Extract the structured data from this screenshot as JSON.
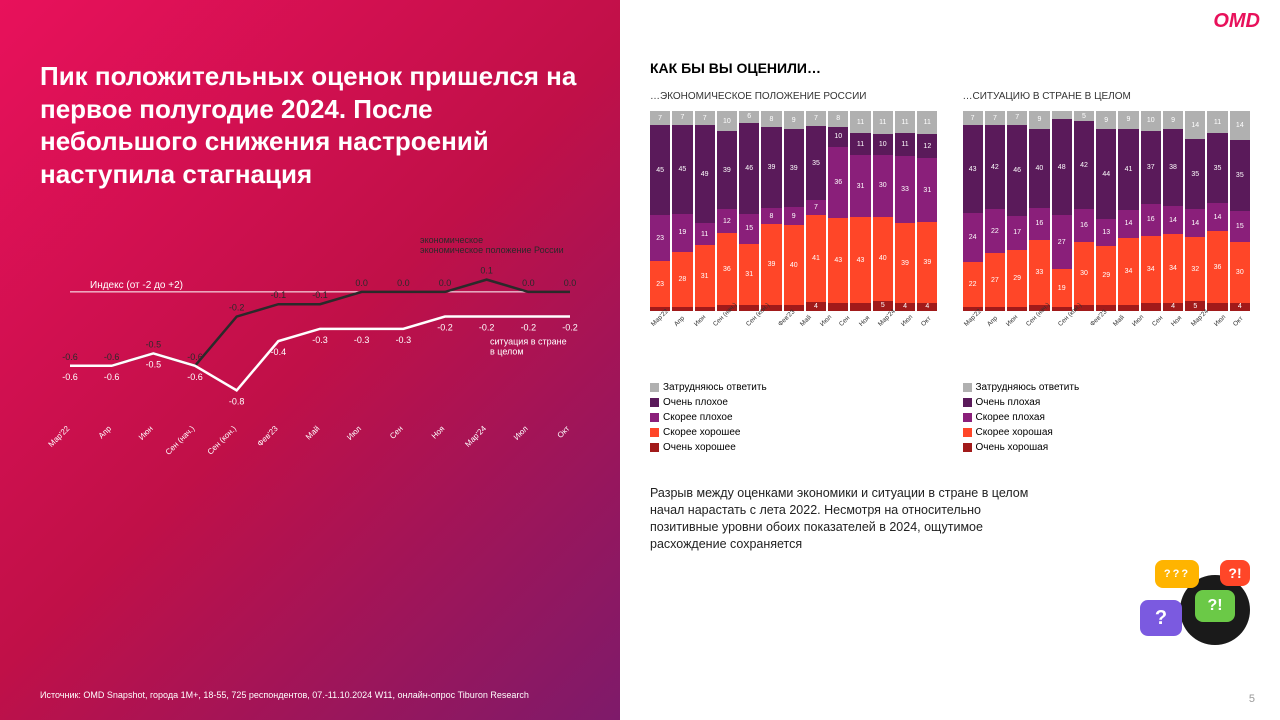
{
  "title": "Пик положительных оценок пришелся на первое полугодие 2024. После небольшого снижения настроений наступила стагнация",
  "source": "Источник: OMD Snapshot, города 1М+, 18-55, 725 респондентов, 07.-11.10.2024 W11,  онлайн-опрос Tiburon Research",
  "page_num": "5",
  "line_chart": {
    "index_label": "Индекс (от -2 до +2)",
    "series1_label": "экономическое положение России",
    "series2_label": "ситуация в стране в целом",
    "x_labels": [
      "Мар'22",
      "Апр",
      "Июн",
      "Сен (нач.)",
      "Сен (кон.)",
      "Фев'23",
      "Май",
      "Июл",
      "Сен",
      "Ноя",
      "Мар'24",
      "Июл",
      "Окт"
    ],
    "s1": [
      -0.6,
      -0.6,
      -0.5,
      -0.6,
      -0.2,
      -0.1,
      -0.1,
      0.0,
      0.0,
      0.0,
      0.1,
      0.0,
      0.0
    ],
    "s2": [
      -0.6,
      -0.6,
      -0.5,
      -0.6,
      -0.8,
      -0.4,
      -0.3,
      -0.3,
      -0.3,
      -0.2,
      -0.2,
      -0.2,
      -0.2
    ],
    "ylim": [
      -1.0,
      0.3
    ],
    "color1": "#2a2a2a",
    "color2": "#ffffff"
  },
  "question_title": "КАК БЫ ВЫ ОЦЕНИЛИ…",
  "chart1": {
    "subtitle": "…ЭКОНОМИЧЕСКОЕ ПОЛОЖЕНИЕ РОССИИ",
    "categories": [
      "Мар'22",
      "Апр",
      "Июн",
      "Сен (нач.)",
      "Сен (кон.)",
      "Фев'23",
      "Май",
      "Июл",
      "Сен",
      "Ноя",
      "Мар'24",
      "Июл",
      "Окт"
    ],
    "stacks": [
      [
        2,
        23,
        23,
        45,
        7
      ],
      [
        2,
        28,
        19,
        45,
        7
      ],
      [
        2,
        31,
        11,
        49,
        7
      ],
      [
        3,
        36,
        12,
        39,
        10
      ],
      [
        3,
        31,
        15,
        46,
        6
      ],
      [
        3,
        39,
        8,
        39,
        8
      ],
      [
        3,
        40,
        9,
        39,
        9
      ],
      [
        4,
        41,
        7,
        35,
        7
      ],
      [
        4,
        43,
        36,
        10,
        8
      ],
      [
        4,
        43,
        31,
        11,
        11
      ],
      [
        5,
        40,
        30,
        10,
        11
      ],
      [
        4,
        39,
        33,
        11,
        11
      ],
      [
        4,
        39,
        31,
        12,
        11
      ]
    ],
    "segments": [
      {
        "label": "Очень хорошее",
        "color": "#a11a1a"
      },
      {
        "label": "Скорее хорошее",
        "color": "#ff4628"
      },
      {
        "label": "Скорее плохое",
        "color": "#8a1f7a"
      },
      {
        "label": "Очень плохое",
        "color": "#5a1a5a"
      },
      {
        "label": "Затрудняюсь ответить",
        "color": "#b0b0b0"
      }
    ],
    "legend": [
      "Затрудняюсь ответить",
      "Очень плохое",
      "Скорее плохое",
      "Скорее хорошее",
      "Очень хорошее"
    ],
    "legend_colors": [
      "#b0b0b0",
      "#5a1a5a",
      "#8a1f7a",
      "#ff4628",
      "#a11a1a"
    ]
  },
  "chart2": {
    "subtitle": "…СИТУАЦИЮ В СТРАНЕ В ЦЕЛОМ",
    "categories": [
      "Мар'22",
      "Апр",
      "Июн",
      "Сен (нач.)",
      "Сен (кон.)",
      "Фев'23",
      "Май",
      "Июл",
      "Сен",
      "Ноя",
      "Мар'24",
      "Июл",
      "Окт"
    ],
    "stacks": [
      [
        2,
        22,
        24,
        43,
        7
      ],
      [
        2,
        27,
        22,
        42,
        7
      ],
      [
        2,
        29,
        17,
        46,
        7
      ],
      [
        3,
        33,
        16,
        40,
        9
      ],
      [
        2,
        19,
        27,
        48,
        4
      ],
      [
        3,
        30,
        16,
        42,
        5
      ],
      [
        3,
        29,
        13,
        44,
        9
      ],
      [
        3,
        34,
        14,
        41,
        9
      ],
      [
        4,
        34,
        16,
        37,
        10
      ],
      [
        4,
        34,
        14,
        38,
        9
      ],
      [
        5,
        32,
        14,
        35,
        14
      ],
      [
        4,
        36,
        14,
        35,
        11
      ],
      [
        4,
        30,
        15,
        35,
        14
      ]
    ],
    "segments": [
      {
        "label": "Очень хорошая",
        "color": "#a11a1a"
      },
      {
        "label": "Скорее хорошая",
        "color": "#ff4628"
      },
      {
        "label": "Скорее плохая",
        "color": "#8a1f7a"
      },
      {
        "label": "Очень плохая",
        "color": "#5a1a5a"
      },
      {
        "label": "Затрудняюсь ответить",
        "color": "#b0b0b0"
      }
    ],
    "legend": [
      "Затрудняюсь ответить",
      "Очень плохая",
      "Скорее плохая",
      "Скорее хорошая",
      "Очень хорошая"
    ],
    "legend_colors": [
      "#b0b0b0",
      "#5a1a5a",
      "#8a1f7a",
      "#ff4628",
      "#a11a1a"
    ]
  },
  "body_text": "Разрыв между оценками экономики и ситуации в стране в целом начал нарастать с лета 2022. Несмотря на относительно позитивные уровни обоих показателей в 2024, ощутимое расхождение сохраняется",
  "colors": {
    "grid": "#ffffff55"
  }
}
